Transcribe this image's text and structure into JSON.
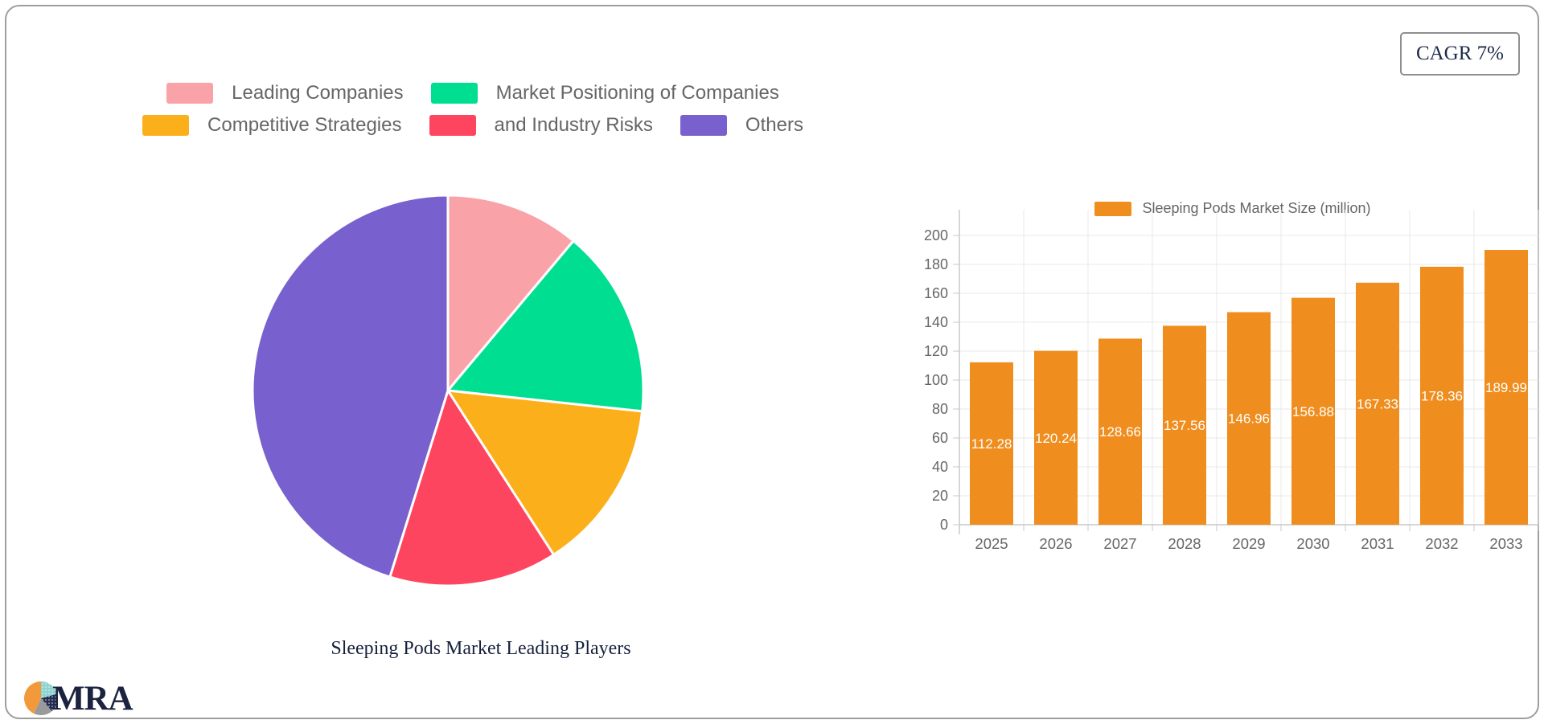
{
  "badge": {
    "text": "CAGR 7%"
  },
  "logo": {
    "text": "MRA"
  },
  "colors": {
    "card_border": "#9E9E9E",
    "legend_text": "#666666",
    "axis_text": "#666666",
    "grid_line": "#E9E9E9",
    "axis_line": "#C9C9C9",
    "title_text": "#16203C",
    "badge_text": "#1E2A4A",
    "value_label": "#FFFFFF",
    "logo_orange": "#F2993B",
    "logo_teal": "#8ED3CF",
    "logo_navy": "#252C52",
    "logo_gray": "#9A9A9A"
  },
  "chart_data": [
    {
      "type": "pie",
      "title": "Sleeping Pods Market Leading Players",
      "labels": [
        "Leading Companies",
        "Market Positioning of Companies",
        "Competitive Strategies",
        "and Industry Risks",
        "Others"
      ],
      "values_percent": [
        11.1,
        15.6,
        14.2,
        13.9,
        45.2
      ],
      "colors": [
        "#F9A3A9",
        "#00DE92",
        "#FBB01B",
        "#FE4560",
        "#7861CE"
      ],
      "start_angle": "12-oclock",
      "direction": "clockwise",
      "slice_border_color": "#FFFFFF",
      "legend_position": "top",
      "legend_rows": [
        [
          0,
          1
        ],
        [
          2,
          3,
          4
        ]
      ]
    },
    {
      "type": "bar",
      "series_label": "Sleeping Pods Market Size (million)",
      "categories": [
        "2025",
        "2026",
        "2027",
        "2028",
        "2029",
        "2030",
        "2031",
        "2032",
        "2033"
      ],
      "values": [
        112.28,
        120.24,
        128.66,
        137.56,
        146.96,
        156.88,
        167.33,
        178.36,
        189.99
      ],
      "bar_color": "#EF8E1F",
      "ylim": [
        0,
        200
      ],
      "ytick_step": 20,
      "grid": true,
      "value_labels_inside": true,
      "legend_position": "top"
    }
  ]
}
